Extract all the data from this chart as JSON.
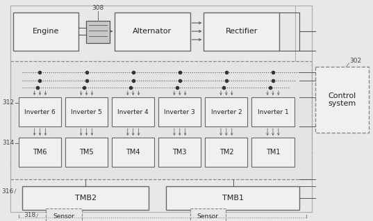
{
  "bg": "#e8e8e8",
  "box_fc": "#dcdcdc",
  "box_ec": "#555555",
  "white_fc": "#f0f0f0",
  "dashed_ec": "#888888",
  "text_color": "#222222",
  "label_color": "#444444",
  "dot_color": "#333333",
  "arrow_color": "#555555",
  "inv_labels": [
    "Inverter 6",
    "Inverter 5",
    "Inverter 4",
    "Inverter 3",
    "Inverter 2",
    "Inverter 1"
  ],
  "tm_labels": [
    "TM6",
    "TM5",
    "TM4",
    "TM3",
    "TM2",
    "TM1"
  ]
}
